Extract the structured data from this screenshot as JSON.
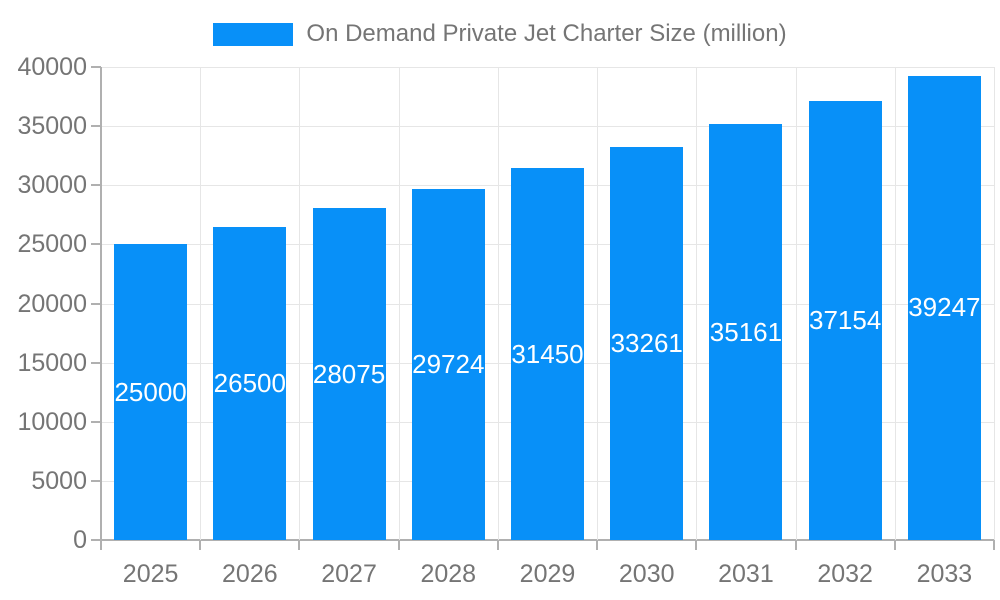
{
  "legend": {
    "label": "On Demand Private Jet Charter Size (million)",
    "swatch_color": "#0890f8",
    "position": "top-center"
  },
  "chart_data": {
    "type": "bar",
    "title": "",
    "series_name": "On Demand Private Jet Charter Size (million)",
    "categories": [
      "2025",
      "2026",
      "2027",
      "2028",
      "2029",
      "2030",
      "2031",
      "2032",
      "2033"
    ],
    "values": [
      25000,
      26500,
      28075,
      29724,
      31450,
      33261,
      35161,
      37154,
      39247
    ],
    "xlabel": "",
    "ylabel": "",
    "ylim": [
      0,
      40000
    ],
    "yticks": [
      0,
      5000,
      10000,
      15000,
      20000,
      25000,
      30000,
      35000,
      40000
    ],
    "grid": true,
    "legend_position": "top",
    "bar_color": "#0890f8",
    "value_label_color": "#ffffff",
    "axis_text_color": "#757575",
    "gridline_color": "#e6e6e6",
    "axis_line_color": "#b0b0b0",
    "background_color": "#ffffff"
  }
}
